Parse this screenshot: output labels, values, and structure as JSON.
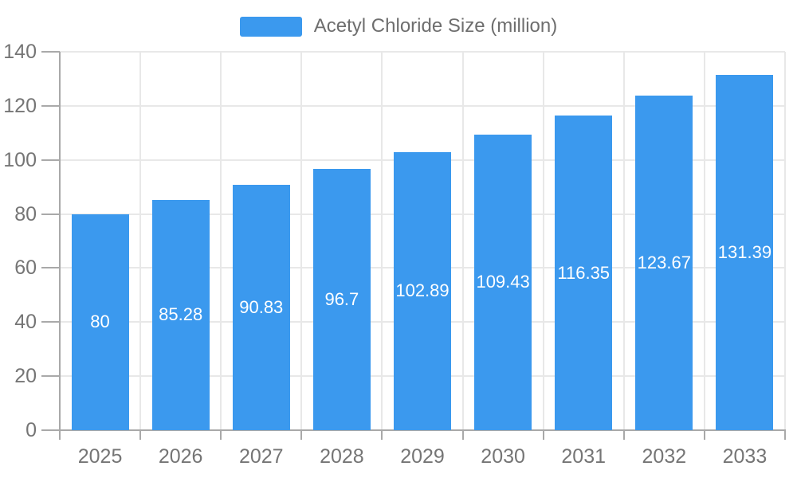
{
  "chart_data": {
    "type": "bar",
    "title": "Acetyl Chloride Size (million)",
    "legend_position": "top",
    "categories": [
      "2025",
      "2026",
      "2027",
      "2028",
      "2029",
      "2030",
      "2031",
      "2032",
      "2033"
    ],
    "values": [
      80,
      85.28,
      90.83,
      96.7,
      102.89,
      109.43,
      116.35,
      123.67,
      131.39
    ],
    "value_labels": [
      "80",
      "85.28",
      "90.83",
      "96.7",
      "102.89",
      "109.43",
      "116.35",
      "123.67",
      "131.39"
    ],
    "xlabel": "",
    "ylabel": "",
    "ylim": [
      0,
      140
    ],
    "yticks": [
      0,
      20,
      40,
      60,
      80,
      100,
      120,
      140
    ],
    "grid": true,
    "colors": {
      "bar": "#3b99ee",
      "grid": "#e8e8e8",
      "axis": "#a9a9a9",
      "tick_text": "#757575",
      "legend_text": "#6e6e6e",
      "value_text": "#ffffff",
      "background": "#ffffff"
    }
  }
}
